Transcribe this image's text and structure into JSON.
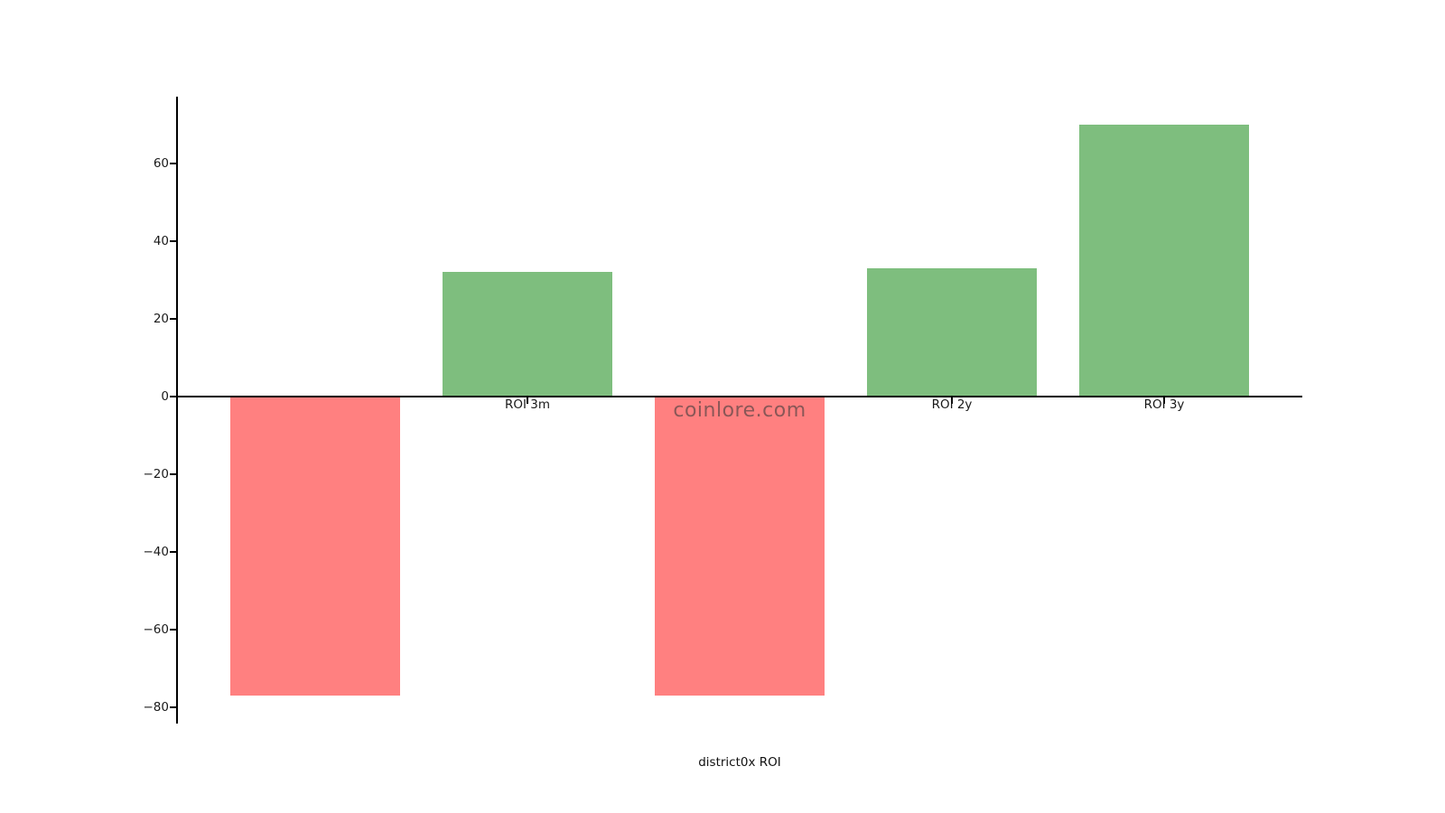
{
  "chart_data": {
    "type": "bar",
    "title": "district0x ROI",
    "categories": [
      "",
      "ROI 3m",
      "",
      "ROI 2y",
      "ROI 3y"
    ],
    "values": [
      -77,
      32,
      -77,
      33,
      70
    ],
    "series": [
      {
        "name": "district0x ROI",
        "values": [
          -77,
          32,
          -77,
          33,
          70
        ]
      }
    ],
    "xlabel": "",
    "ylabel": "",
    "yticks": [
      -80,
      -60,
      -40,
      -20,
      0,
      20,
      40,
      60
    ],
    "ylim": [
      -84.35,
      77.35
    ],
    "grid": false,
    "legend": false,
    "bar_color_positive": "#7ebe7e",
    "bar_color_negative": "#ff8080",
    "axis_color": "#000000",
    "tick_label_color": "#1a1a1a",
    "background_color": "#ffffff"
  },
  "watermark": {
    "text": "coinlore.com",
    "color": "rgba(60,60,60,0.6)"
  }
}
